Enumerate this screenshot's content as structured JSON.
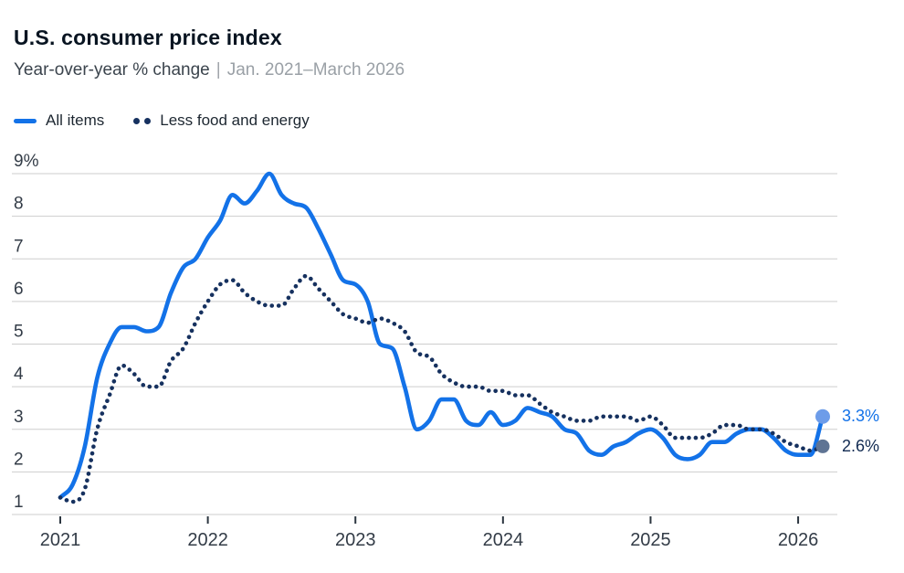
{
  "header": {
    "title": "U.S. consumer price index",
    "subtitle": "Year-over-year % change",
    "subtitle_separator": "|",
    "date_range": "Jan. 2021–March 2026"
  },
  "legend": {
    "items": [
      {
        "label": "All items",
        "swatch": "solid-line"
      },
      {
        "label": "Less food and energy",
        "swatch": "dots"
      }
    ]
  },
  "chart_data": {
    "type": "line",
    "title": "U.S. consumer price index",
    "ylabel": "Year-over-year % change",
    "frequency": "monthly",
    "start": "Jan. 2021",
    "end": "March 2026",
    "ylim": [
      1,
      9
    ],
    "y_ticks": [
      1,
      2,
      3,
      4,
      5,
      6,
      7,
      8,
      9
    ],
    "y_top_tick_label": "9%",
    "x_tick_labels": [
      "2021",
      "2022",
      "2023",
      "2024",
      "2025",
      "2026"
    ],
    "grid": true,
    "colors": {
      "grid": "#cdcdcd",
      "tick": "#2c3640",
      "axis_text": "#333c47"
    },
    "series": [
      {
        "name": "All items",
        "style": "solid",
        "color": "#1372e8",
        "end_label": "3.3%",
        "end_value": 3.3,
        "end_dot_color": "#6d9ce9",
        "values": [
          1.4,
          1.7,
          2.6,
          4.2,
          5.0,
          5.4,
          5.4,
          5.3,
          5.4,
          6.2,
          6.8,
          7.0,
          7.5,
          7.9,
          8.5,
          8.3,
          8.6,
          9.0,
          8.5,
          8.3,
          8.2,
          7.7,
          7.1,
          6.5,
          6.4,
          6.0,
          5.0,
          4.9,
          4.0,
          3.0,
          3.2,
          3.7,
          3.7,
          3.2,
          3.1,
          3.4,
          3.1,
          3.2,
          3.5,
          3.4,
          3.3,
          3.0,
          2.9,
          2.5,
          2.4,
          2.6,
          2.7,
          2.9,
          3.0,
          2.8,
          2.4,
          2.3,
          2.4,
          2.7,
          2.7,
          2.9,
          3.0,
          3.0,
          2.8,
          2.5,
          2.4,
          2.4,
          3.3
        ]
      },
      {
        "name": "Less food and energy",
        "style": "dotted",
        "color": "#16315f",
        "end_label": "2.6%",
        "end_value": 2.6,
        "end_dot_color": "#5f7494",
        "values": [
          1.4,
          1.3,
          1.6,
          3.0,
          3.8,
          4.5,
          4.3,
          4.0,
          4.0,
          4.6,
          4.9,
          5.5,
          6.0,
          6.4,
          6.5,
          6.2,
          6.0,
          5.9,
          5.9,
          6.3,
          6.6,
          6.3,
          6.0,
          5.7,
          5.6,
          5.5,
          5.6,
          5.5,
          5.3,
          4.8,
          4.7,
          4.3,
          4.1,
          4.0,
          4.0,
          3.9,
          3.9,
          3.8,
          3.8,
          3.6,
          3.4,
          3.3,
          3.2,
          3.2,
          3.3,
          3.3,
          3.3,
          3.2,
          3.3,
          3.1,
          2.8,
          2.8,
          2.8,
          2.9,
          3.1,
          3.1,
          3.0,
          3.0,
          2.9,
          2.7,
          2.6,
          2.5,
          2.6
        ]
      }
    ]
  }
}
